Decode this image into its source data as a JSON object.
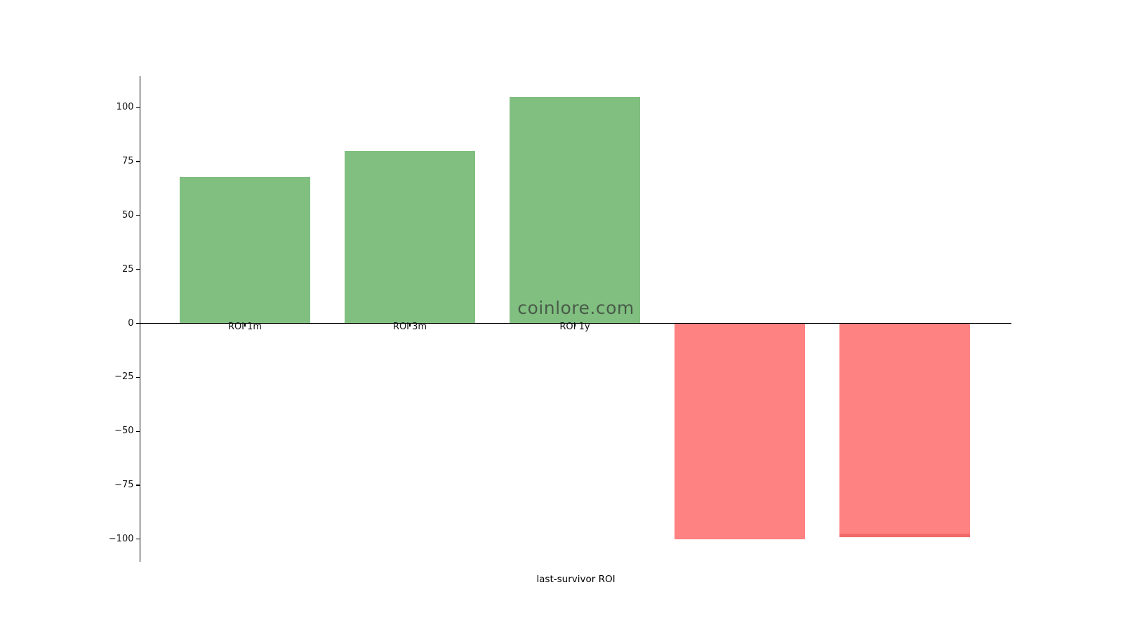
{
  "chart_data": {
    "type": "bar",
    "title": "last-survivor ROI",
    "watermark": "coinlore.com",
    "categories": [
      "ROI 1m",
      "ROI 3m",
      "ROI 1y",
      "",
      ""
    ],
    "values": [
      68,
      80,
      105,
      -100,
      -99
    ],
    "xlabel": "",
    "ylabel": "",
    "yticks": [
      100,
      75,
      50,
      25,
      0,
      -25,
      -50,
      -75,
      -100
    ],
    "ylim": [
      -110,
      115
    ],
    "grid": false,
    "legend": "none",
    "colors": {
      "positive": "#80bf80",
      "negative": "#ff8282",
      "axis": "#000000",
      "tick_text": "#111111",
      "watermark_text": "#3a403a"
    }
  }
}
